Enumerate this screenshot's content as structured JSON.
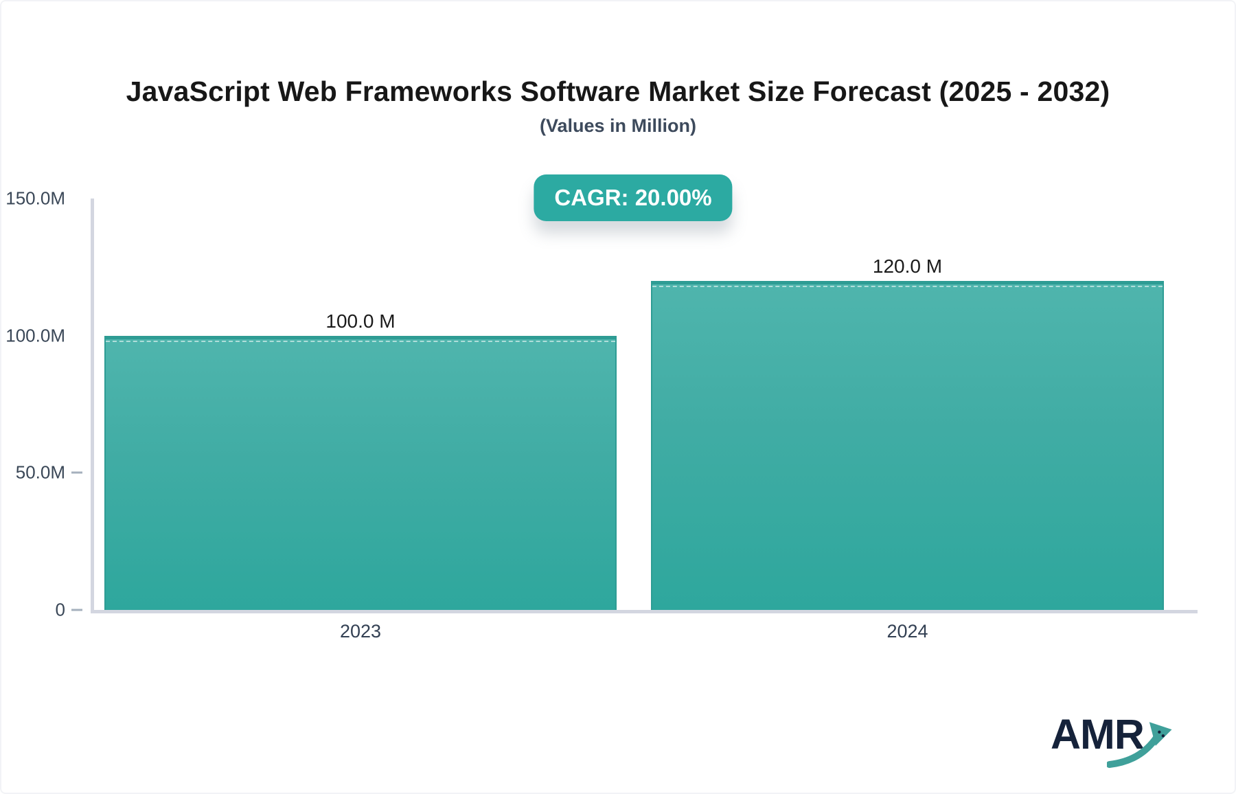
{
  "header": {
    "title": "JavaScript Web Frameworks Software Market Size Forecast (2025 - 2032)",
    "subtitle": "(Values in Million)"
  },
  "cagr_badge": {
    "label": "CAGR: 20.00%"
  },
  "chart_data": {
    "type": "bar",
    "title": "JavaScript Web Frameworks Software Market Size Forecast (2025 - 2032)",
    "subtitle": "(Values in Million)",
    "unit": "Million",
    "cagr": "20.00%",
    "categories": [
      "2023",
      "2024"
    ],
    "values": [
      100.0,
      120.0
    ],
    "value_labels": [
      "100.0 M",
      "120.0 M"
    ],
    "xlabel": "",
    "ylabel": "",
    "ylim": [
      0,
      150
    ],
    "yticks": [
      {
        "label": "150.0M",
        "value": 150,
        "tick_mark": false
      },
      {
        "label": "100.0M",
        "value": 100,
        "tick_mark": false
      },
      {
        "label": "50.0M",
        "value": 50,
        "tick_mark": true
      },
      {
        "label": "0",
        "value": 0,
        "tick_mark": true
      }
    ],
    "grid": false,
    "legend": false
  },
  "logo": {
    "text": "AMR",
    "icon": "growth-arrow-icon"
  },
  "colors": {
    "accent_teal": "#2caaa2",
    "bar_gradient_top": "#4fb5ad",
    "bar_gradient_bottom": "#2ea79d",
    "bar_border": "#2e9c94",
    "axis_line": "#d3d6e0",
    "tick_mark": "#a5b0bd",
    "axis_text": "#3a4757",
    "value_text": "#1b1b1b",
    "title_text": "#171717",
    "logo_navy": "#15223a",
    "logo_teal": "#3fa09a"
  }
}
